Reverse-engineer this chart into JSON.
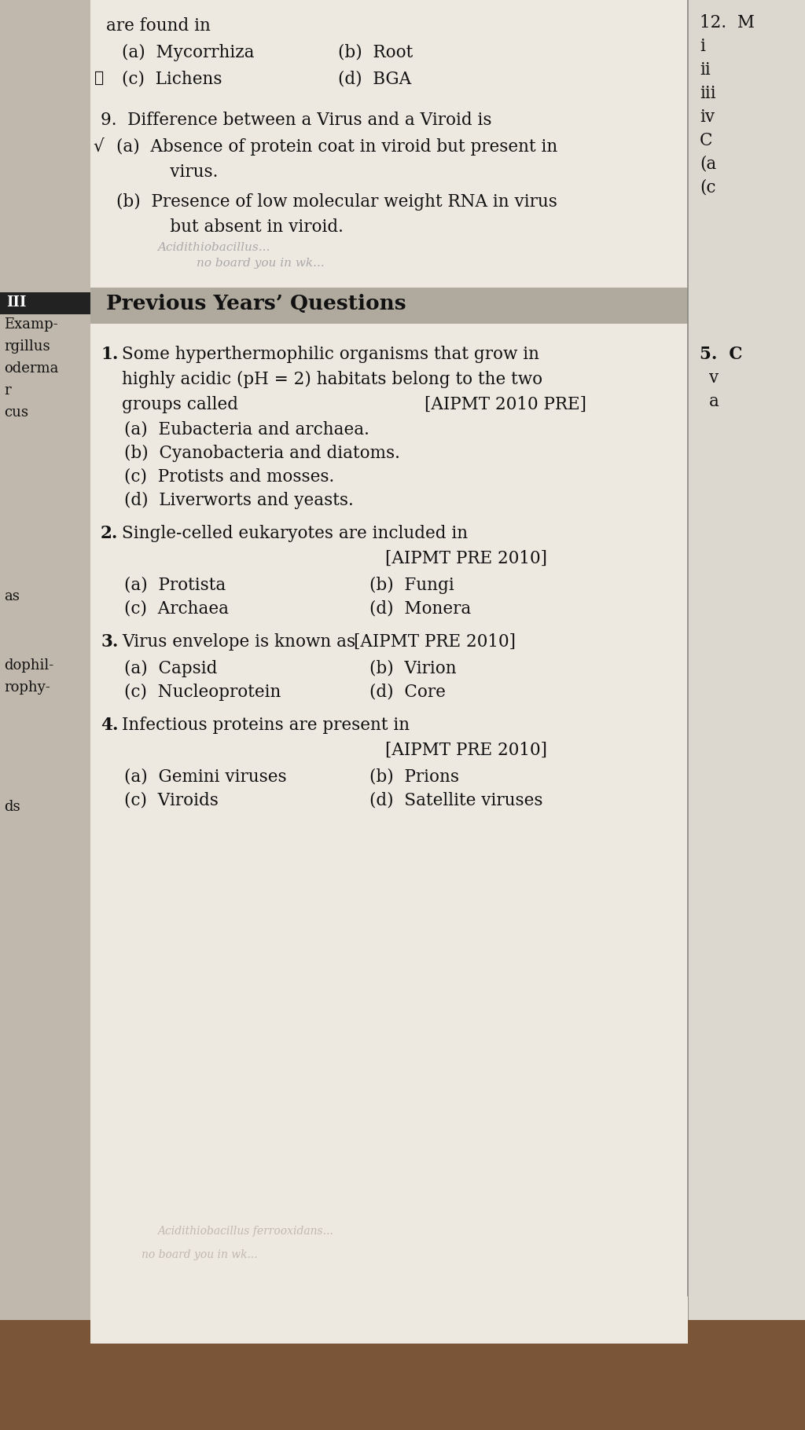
{
  "figsize": [
    10.24,
    18.2
  ],
  "dpi": 100,
  "bg_color": "#b8aa98",
  "page_color": "#ede8e0",
  "right_col_color": "#ddd8cf",
  "header_box_color": "#b0aa9e",
  "left_sidebar_color": "#c0b8ac",
  "divider_color": "#888880",
  "text_color": "#111111",
  "font_size": 15.5,
  "small_font": 13,
  "header_font": 19,
  "prev_years_title": "Previous Years’ Questions",
  "top_lines": [
    "are found in",
    "(a)  Mycorrhiza",
    "(b)  Root",
    "(c)  Lichens",
    "(d)  BGA"
  ],
  "q9_text": "9.  Difference between a Virus and a Viroid is",
  "q9_a": "(a)  Absence of protein coat in viroid but present in",
  "q9_a2": "      virus.",
  "q9_b": "(b)  Presence of low molecular weight RNA in virus",
  "q9_b2": "      but absent in viroid.",
  "q1_line1": "1.  Some hyperthermophilic organisms that grow in",
  "q1_line2": "     highly acidic (pH = 2) habitats belong to the two",
  "q1_line3": "     groups called",
  "q1_ref": "[AIPMT 2010 PRE]",
  "q1_opts": [
    "(a)  Eubacteria and archaea.",
    "(b)  Cyanobacteria and diatoms.",
    "(c)  Protists and mosses.",
    "(d)  Liverworts and yeasts."
  ],
  "q2_line1": "2.  Single-celled eukaryotes are included in",
  "q2_ref": "[AIPMT PRE 2010]",
  "q2_opts": [
    [
      "(a)  Protista",
      "(b)  Fungi"
    ],
    [
      "(c)  Archaea",
      "(d)  Monera"
    ]
  ],
  "q3_line1": "3.  Virus envelope is known as",
  "q3_ref": "[AIPMT PRE 2010]",
  "q3_opts": [
    [
      "(a)  Capsid",
      "(b)  Virion"
    ],
    [
      "(c)  Nucleoprotein",
      "(d)  Core"
    ]
  ],
  "q4_line1": "4.  Infectious proteins are present in",
  "q4_ref": "[AIPMT PRE 2010]",
  "q4_opts": [
    [
      "(a)  Gemini viruses",
      "(b)  Prions"
    ],
    [
      "(c)  Viroids",
      "(d)  Satellite viruses"
    ]
  ],
  "right_top": [
    "12.  M",
    "i",
    "ii",
    "iii",
    "iv",
    "C",
    "(a",
    "(c"
  ],
  "right_q5": [
    "5.  C",
    "v",
    "a"
  ],
  "sidebar_top": [
    {
      "label": "III",
      "bold": true
    },
    {
      "label": "Examp-",
      "bold": false
    },
    {
      "label": "rgillus",
      "bold": false
    },
    {
      "label": "oderma",
      "bold": false
    },
    {
      "label": "r",
      "bold": false
    },
    {
      "label": "cus",
      "bold": false
    }
  ],
  "sidebar_mid": [
    {
      "label": "as",
      "bold": false
    }
  ],
  "sidebar_bot": [
    {
      "label": "dophil-",
      "bold": false
    },
    {
      "label": "rophy-",
      "bold": false
    }
  ],
  "sidebar_vbot": [
    {
      "label": "ds",
      "bold": false
    }
  ]
}
